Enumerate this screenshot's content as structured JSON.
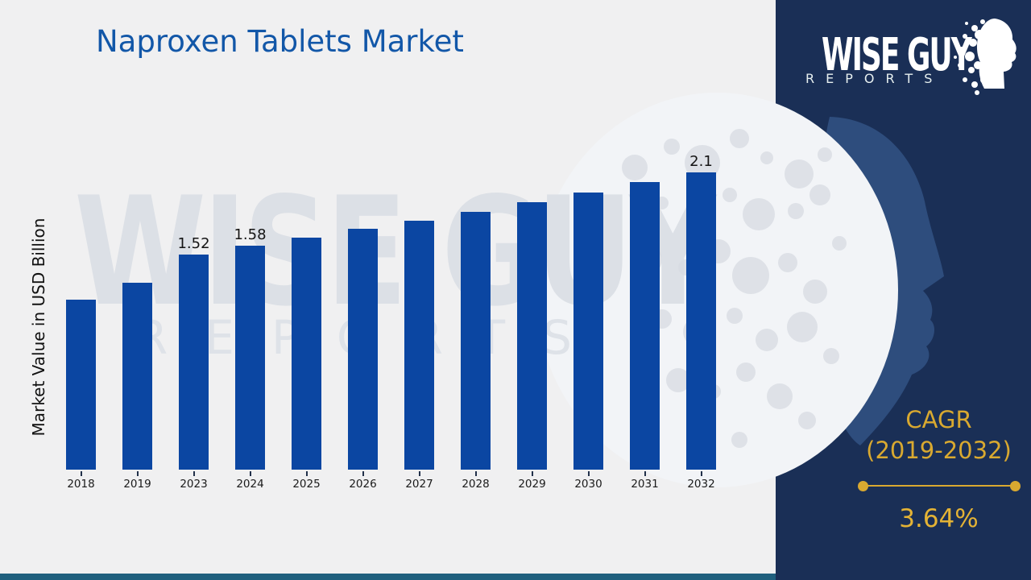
{
  "page": {
    "background": "#f0f0f1",
    "bottom_strip_color": "#20607e"
  },
  "title": {
    "text": "Naproxen Tablets Market",
    "color": "#1257a8"
  },
  "watermark": {
    "line1": "WISE GUY",
    "line2": "REPORTS"
  },
  "logo": {
    "line1": "WISE GUY",
    "line2": "REPORTS",
    "panel_color": "#1a2f56"
  },
  "cagr": {
    "label": "CAGR",
    "range": "(2019-2032)",
    "value": "3.64%",
    "color": "#d9a930"
  },
  "chart_data": {
    "type": "bar",
    "title": "Naproxen Tablets Market",
    "xlabel": "",
    "ylabel": "Market Value in USD Billion",
    "categories": [
      "2018",
      "2019",
      "2023",
      "2024",
      "2025",
      "2026",
      "2027",
      "2028",
      "2029",
      "2030",
      "2031",
      "2032"
    ],
    "values": [
      1.2,
      1.32,
      1.52,
      1.58,
      1.64,
      1.7,
      1.76,
      1.82,
      1.89,
      1.96,
      2.03,
      2.1
    ],
    "bar_labels": [
      "",
      "",
      "1.52",
      "1.58",
      "",
      "",
      "",
      "",
      "",
      "",
      "",
      "2.1"
    ],
    "bar_color": "#0b46a2",
    "ylim": [
      0,
      2.35
    ],
    "grid": false,
    "legend": null,
    "unit": "USD Billion"
  }
}
